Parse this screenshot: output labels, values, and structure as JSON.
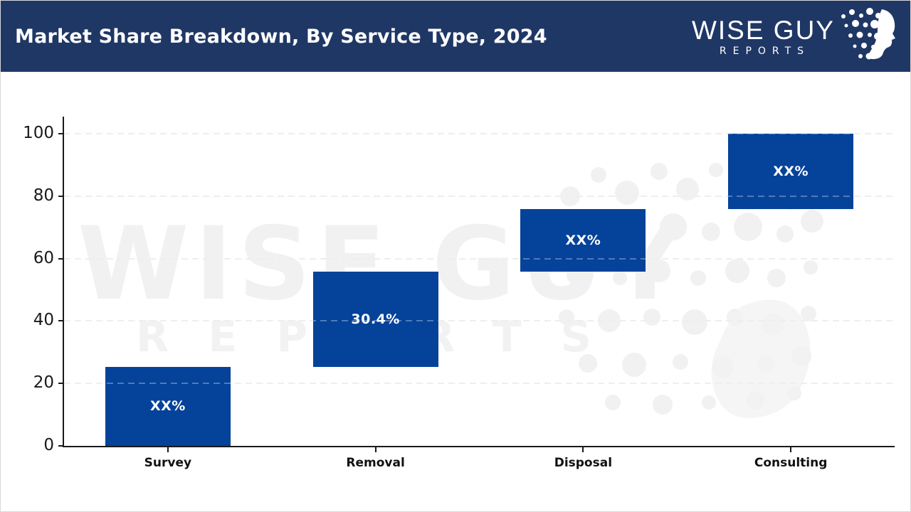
{
  "header": {
    "title": "Market Share Breakdown, By Service Type, 2024",
    "logo": {
      "line1": "WISE GUY",
      "line2": "REPORTS"
    }
  },
  "watermark": {
    "line1": "WISE GUY",
    "line2": "REPORTS"
  },
  "colors": {
    "header_bg": "#1f3765",
    "bar": "#05429a",
    "grid": "#e7e7e7",
    "axis": "#1a1a1a",
    "bar_label": "#ffffff",
    "watermark": "#f1f1f1",
    "page_border": "#d9d9d9"
  },
  "chart_data": {
    "type": "bar",
    "variant": "waterfall-floating",
    "title": "Market Share Breakdown, By Service Type, 2024",
    "categories": [
      "Survey",
      "Removal",
      "Disposal",
      "Consulting"
    ],
    "segments": [
      {
        "category": "Survey",
        "start": 0,
        "end": 25.3,
        "label": "XX%"
      },
      {
        "category": "Removal",
        "start": 25.3,
        "end": 55.7,
        "label": "30.4%"
      },
      {
        "category": "Disposal",
        "start": 55.7,
        "end": 75.9,
        "label": "XX%"
      },
      {
        "category": "Consulting",
        "start": 75.9,
        "end": 100,
        "label": "XX%"
      }
    ],
    "xlabel": "",
    "ylabel": "",
    "ylim": [
      0,
      105
    ],
    "yticks": [
      0,
      20,
      40,
      60,
      80,
      100
    ],
    "grid": "horizontal-dashed",
    "legend": "none"
  }
}
